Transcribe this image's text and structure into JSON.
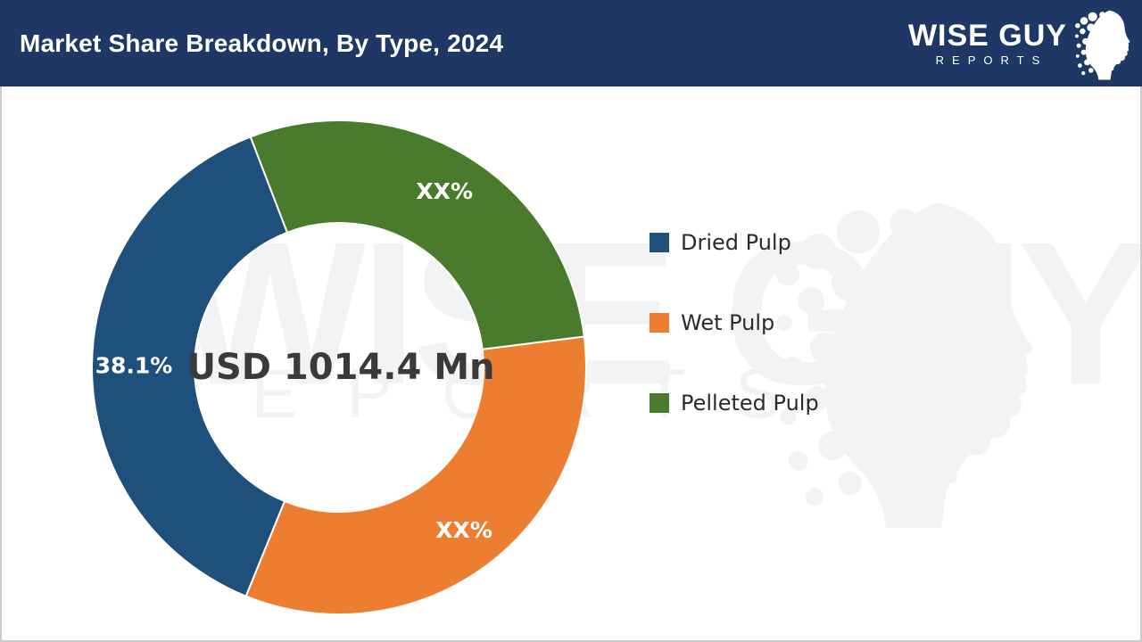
{
  "header": {
    "title": "Market Share Breakdown, By Type, 2024"
  },
  "brand": {
    "name": "WISE GUY",
    "sub": "REPORTS"
  },
  "watermark": {
    "line1": "WISE GUY",
    "line2": "REPORTS"
  },
  "colors": {
    "header_bg": "#1E3765",
    "center_text": "#3A3A3A",
    "legend_text": "#2B2B2B",
    "slice_label": "#FFFFFF",
    "watermark": "#F2F3F4",
    "border": "#CCCCCC"
  },
  "chart_data": {
    "type": "pie",
    "subtype": "donut",
    "title": "Market Share Breakdown, By Type, 2024",
    "center_label": "USD 1014.4 Mn",
    "start_angle_deg": 111,
    "direction": "counterclockwise",
    "inner_radius_frac": 0.585,
    "legend_position": "right",
    "segments": [
      {
        "name": "Dried Pulp",
        "display_label": "38.1%",
        "value_pct": 38.1,
        "color": "#1F4F7B"
      },
      {
        "name": "Wet Pulp",
        "display_label": "XX%",
        "value_pct": 33.2,
        "color": "#ED7D31"
      },
      {
        "name": "Pelleted Pulp",
        "display_label": "XX%",
        "value_pct": 28.9,
        "color": "#4A7A2B"
      }
    ]
  }
}
